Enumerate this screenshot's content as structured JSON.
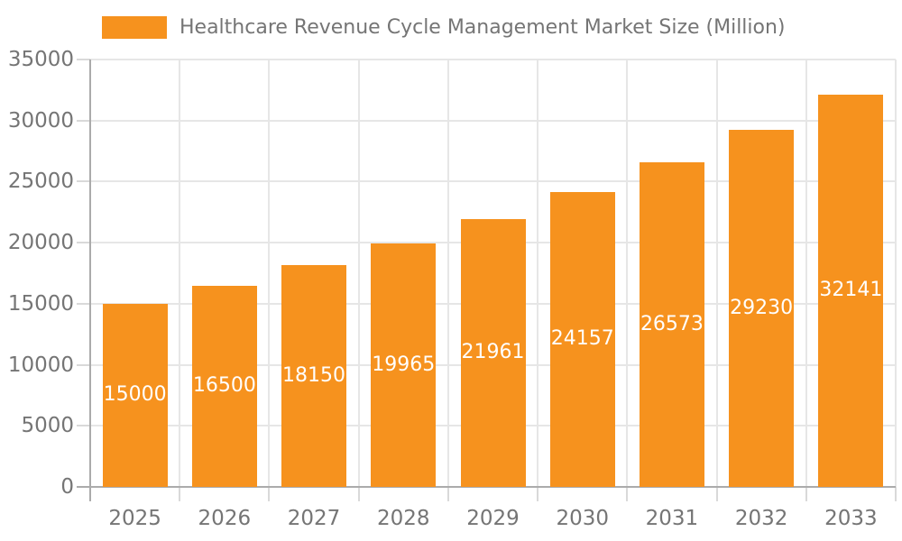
{
  "colors": {
    "bar": "#f6921e",
    "grid": "#e6e6e6",
    "tick": "#d9d9d9",
    "axis": "#ababab",
    "text": "#757575",
    "value_text": "#ffffff",
    "background": "#ffffff"
  },
  "chart_data": {
    "type": "bar",
    "title": "Healthcare Revenue Cycle Management Market Size (Million)",
    "legend_position": "top",
    "categories": [
      "2025",
      "2026",
      "2027",
      "2028",
      "2029",
      "2030",
      "2031",
      "2032",
      "2033"
    ],
    "values": [
      15000,
      16500,
      18150,
      19965,
      21961,
      24157,
      26573,
      29230,
      32141
    ],
    "value_labels_position": "inside-center",
    "xlabel": "",
    "ylabel": "",
    "ylim": [
      0,
      35000
    ],
    "yticks": [
      0,
      5000,
      10000,
      15000,
      20000,
      25000,
      30000,
      35000
    ],
    "grid": "horizontal-and-vertical"
  }
}
